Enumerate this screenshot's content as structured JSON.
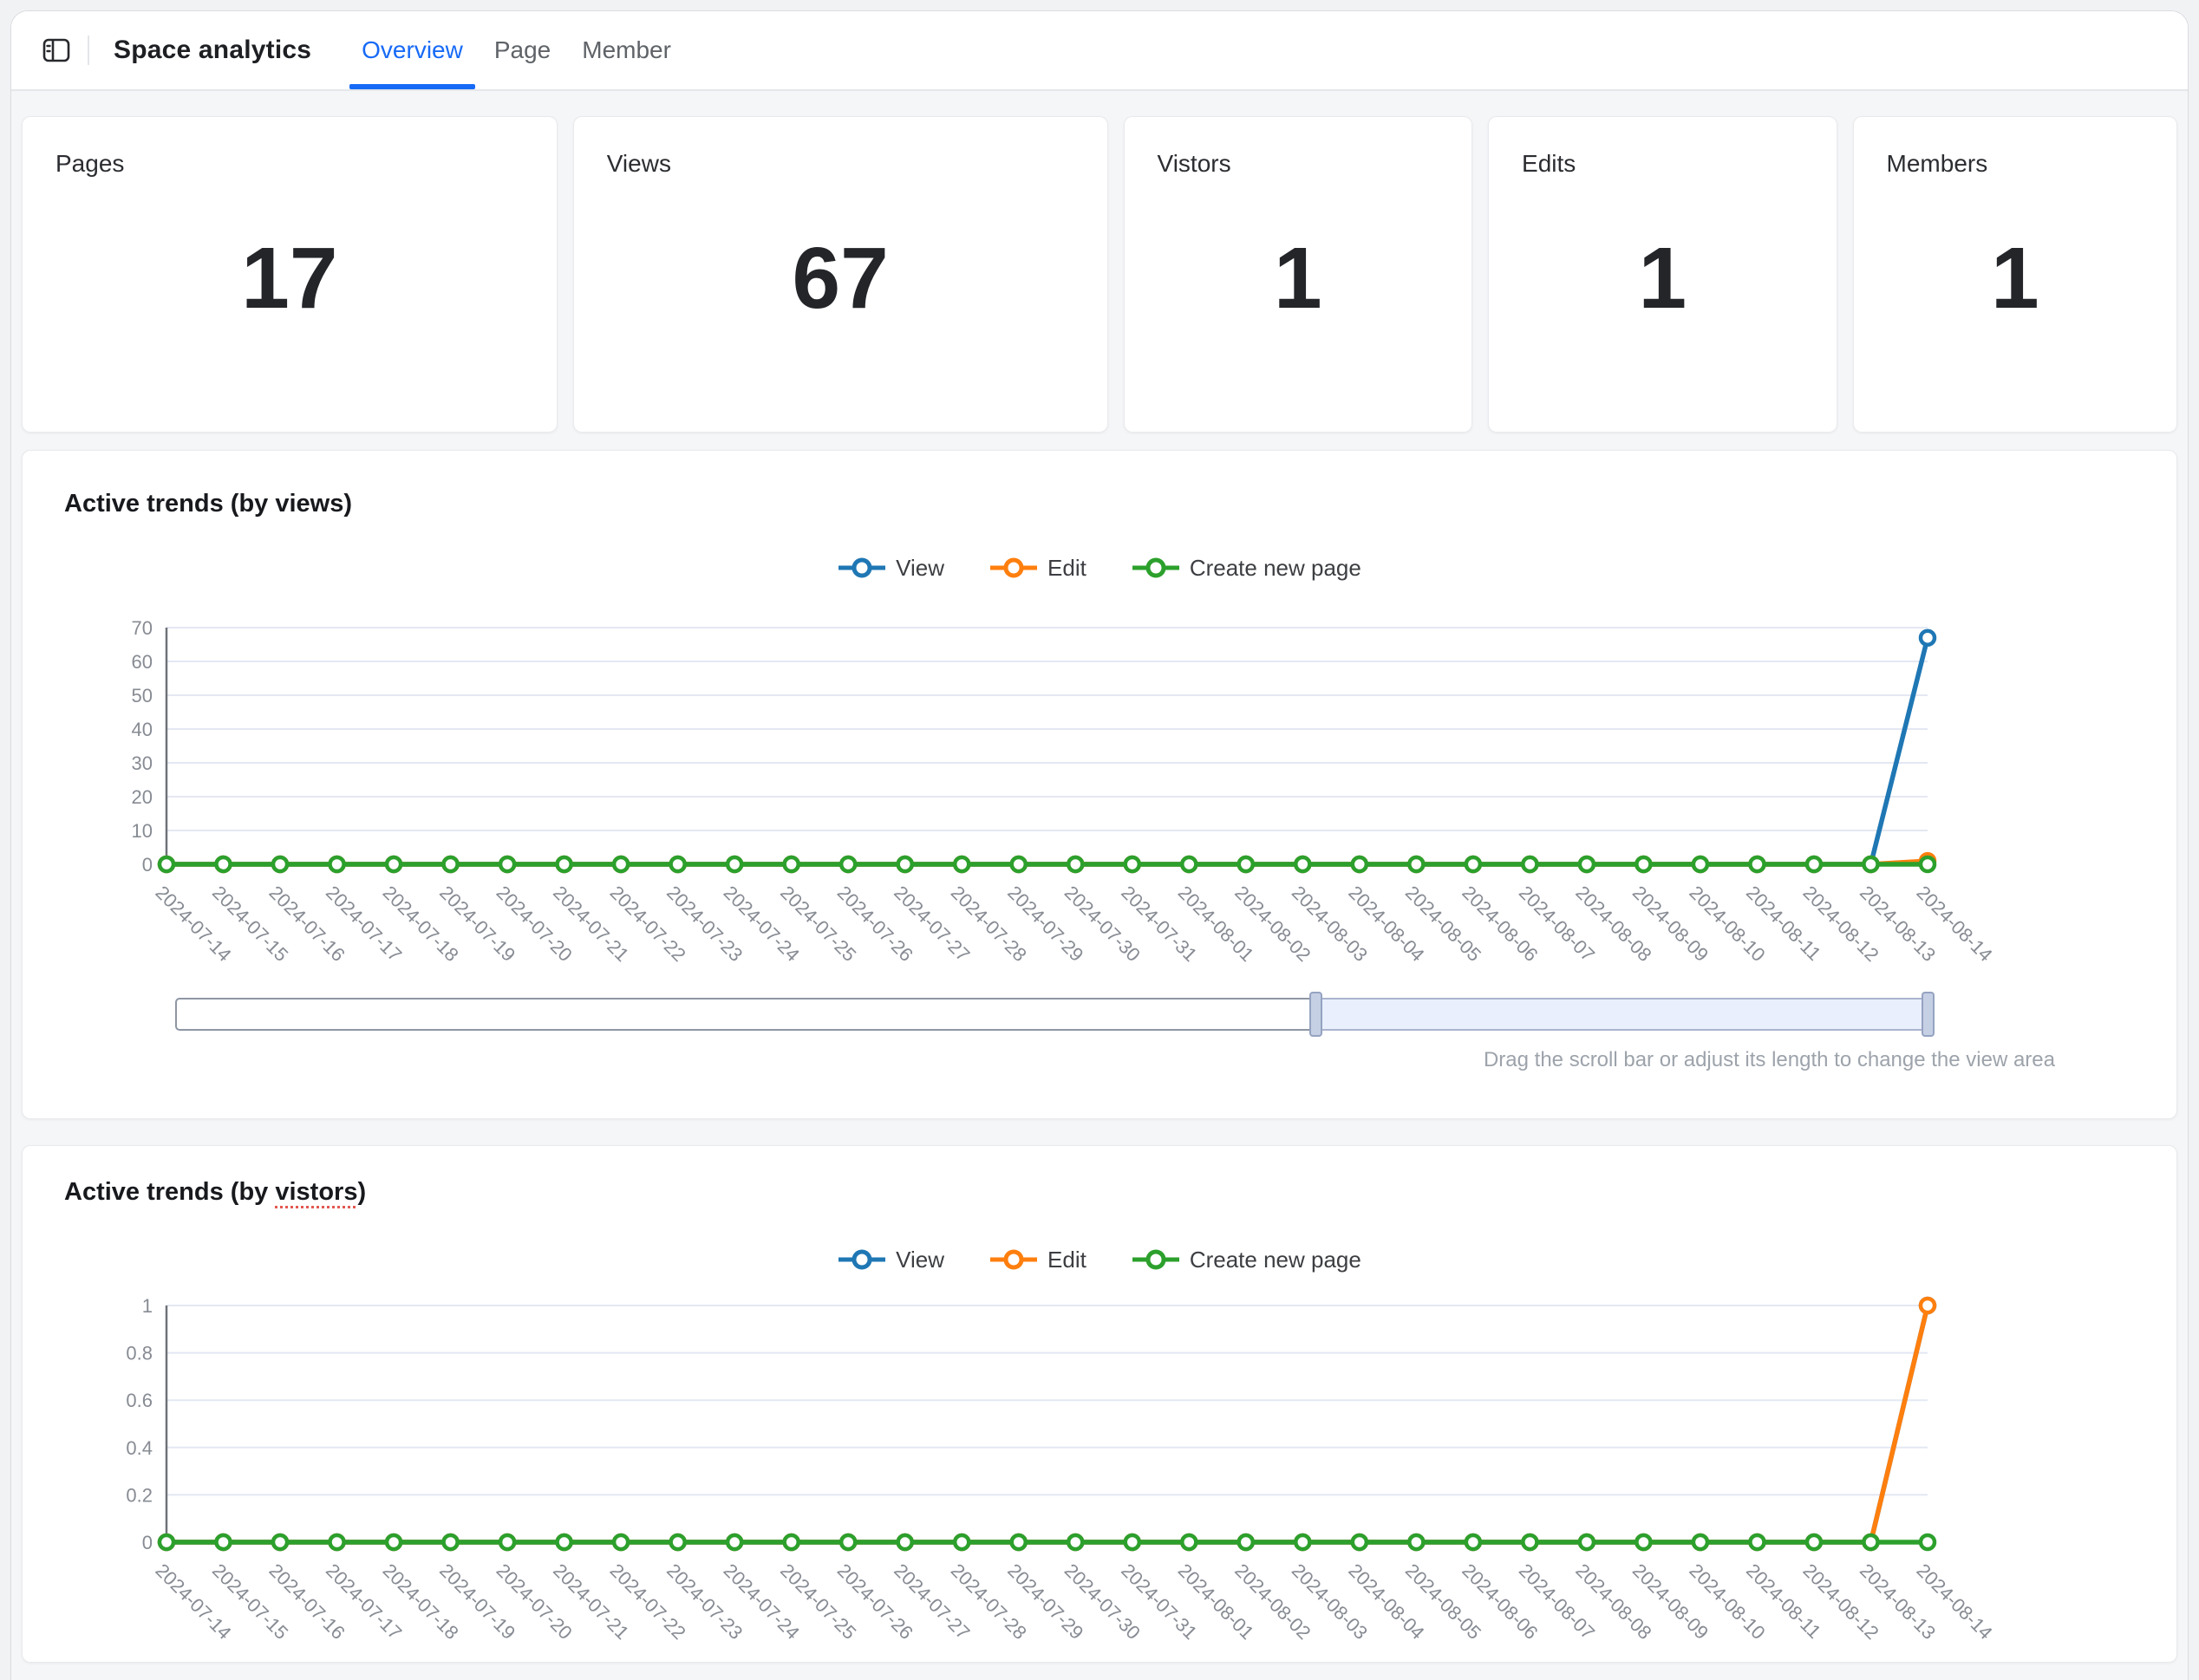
{
  "header": {
    "title": "Space analytics",
    "tabs": [
      {
        "label": "Overview",
        "active": true
      },
      {
        "label": "Page",
        "active": false
      },
      {
        "label": "Member",
        "active": false
      }
    ]
  },
  "stats": [
    {
      "label": "Pages",
      "value": "17"
    },
    {
      "label": "Views",
      "value": "67"
    },
    {
      "label": "Vistors",
      "value": "1"
    },
    {
      "label": "Edits",
      "value": "1"
    },
    {
      "label": "Members",
      "value": "1"
    }
  ],
  "legend": [
    {
      "label": "View",
      "color": "#1f77b4"
    },
    {
      "label": "Edit",
      "color": "#ff7f0e"
    },
    {
      "label": "Create new page",
      "color": "#2ca02c"
    }
  ],
  "colors": {
    "accent_blue": "#176af6",
    "grid": "#e4e8f3",
    "axis": "#6e7279",
    "axis_label": "#878b93"
  },
  "zoombar": {
    "selection_start_pct": 64.8,
    "selection_end_pct": 99.85,
    "hint": "Drag the scroll bar or adjust its length to change the view area"
  },
  "chart2_title_parts": {
    "prefix": "Active trends (by ",
    "word": "vistors",
    "suffix": ")"
  },
  "chart_data": [
    {
      "type": "line",
      "title": "Active trends (by views)",
      "x": [
        "2024-07-14",
        "2024-07-15",
        "2024-07-16",
        "2024-07-17",
        "2024-07-18",
        "2024-07-19",
        "2024-07-20",
        "2024-07-21",
        "2024-07-22",
        "2024-07-23",
        "2024-07-24",
        "2024-07-25",
        "2024-07-26",
        "2024-07-27",
        "2024-07-28",
        "2024-07-29",
        "2024-07-30",
        "2024-07-31",
        "2024-08-01",
        "2024-08-02",
        "2024-08-03",
        "2024-08-04",
        "2024-08-05",
        "2024-08-06",
        "2024-08-07",
        "2024-08-08",
        "2024-08-09",
        "2024-08-10",
        "2024-08-11",
        "2024-08-12",
        "2024-08-13",
        "2024-08-14"
      ],
      "series": [
        {
          "name": "View",
          "color": "#1f77b4",
          "values": [
            0,
            0,
            0,
            0,
            0,
            0,
            0,
            0,
            0,
            0,
            0,
            0,
            0,
            0,
            0,
            0,
            0,
            0,
            0,
            0,
            0,
            0,
            0,
            0,
            0,
            0,
            0,
            0,
            0,
            0,
            0,
            67
          ]
        },
        {
          "name": "Edit",
          "color": "#ff7f0e",
          "values": [
            0,
            0,
            0,
            0,
            0,
            0,
            0,
            0,
            0,
            0,
            0,
            0,
            0,
            0,
            0,
            0,
            0,
            0,
            0,
            0,
            0,
            0,
            0,
            0,
            0,
            0,
            0,
            0,
            0,
            0,
            0,
            1
          ]
        },
        {
          "name": "Create new page",
          "color": "#2ca02c",
          "values": [
            0,
            0,
            0,
            0,
            0,
            0,
            0,
            0,
            0,
            0,
            0,
            0,
            0,
            0,
            0,
            0,
            0,
            0,
            0,
            0,
            0,
            0,
            0,
            0,
            0,
            0,
            0,
            0,
            0,
            0,
            0,
            0
          ]
        }
      ],
      "ylim": [
        0,
        70
      ],
      "yticks": [
        0,
        10,
        20,
        30,
        40,
        50,
        60,
        70
      ],
      "ytick_labels": [
        "0",
        "10",
        "20",
        "30",
        "40",
        "50",
        "60",
        "70"
      ],
      "legend_position": "top-center",
      "grid": "horizontal"
    },
    {
      "type": "line",
      "title": "Active trends (by vistors)",
      "x": [
        "2024-07-14",
        "2024-07-15",
        "2024-07-16",
        "2024-07-17",
        "2024-07-18",
        "2024-07-19",
        "2024-07-20",
        "2024-07-21",
        "2024-07-22",
        "2024-07-23",
        "2024-07-24",
        "2024-07-25",
        "2024-07-26",
        "2024-07-27",
        "2024-07-28",
        "2024-07-29",
        "2024-07-30",
        "2024-07-31",
        "2024-08-01",
        "2024-08-02",
        "2024-08-03",
        "2024-08-04",
        "2024-08-05",
        "2024-08-06",
        "2024-08-07",
        "2024-08-08",
        "2024-08-09",
        "2024-08-10",
        "2024-08-11",
        "2024-08-12",
        "2024-08-13",
        "2024-08-14"
      ],
      "series": [
        {
          "name": "View",
          "color": "#1f77b4",
          "values": [
            0,
            0,
            0,
            0,
            0,
            0,
            0,
            0,
            0,
            0,
            0,
            0,
            0,
            0,
            0,
            0,
            0,
            0,
            0,
            0,
            0,
            0,
            0,
            0,
            0,
            0,
            0,
            0,
            0,
            0,
            0,
            1
          ]
        },
        {
          "name": "Edit",
          "color": "#ff7f0e",
          "values": [
            0,
            0,
            0,
            0,
            0,
            0,
            0,
            0,
            0,
            0,
            0,
            0,
            0,
            0,
            0,
            0,
            0,
            0,
            0,
            0,
            0,
            0,
            0,
            0,
            0,
            0,
            0,
            0,
            0,
            0,
            0,
            1
          ]
        },
        {
          "name": "Create new page",
          "color": "#2ca02c",
          "values": [
            0,
            0,
            0,
            0,
            0,
            0,
            0,
            0,
            0,
            0,
            0,
            0,
            0,
            0,
            0,
            0,
            0,
            0,
            0,
            0,
            0,
            0,
            0,
            0,
            0,
            0,
            0,
            0,
            0,
            0,
            0,
            0
          ]
        }
      ],
      "ylim": [
        0,
        1
      ],
      "yticks": [
        0,
        0.2,
        0.4,
        0.6,
        0.8,
        1
      ],
      "ytick_labels": [
        "0",
        "0.2",
        "0.4",
        "0.6",
        "0.8",
        "1"
      ],
      "legend_position": "top-center",
      "grid": "horizontal"
    }
  ]
}
